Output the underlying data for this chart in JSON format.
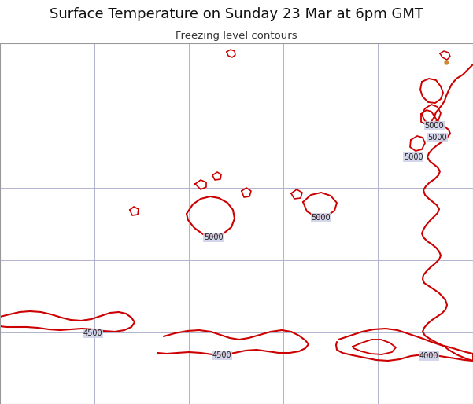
{
  "title": "Surface Temperature on Sunday 23 Mar at 6pm GMT",
  "subtitle": "Freezing level contours",
  "bg_color": "#cdd0e8",
  "map_bg_color": "#cdd0e8",
  "grid_color": "#b0b3cc",
  "contour_color": "#cc0000",
  "title_fontsize": 13,
  "subtitle_fontsize": 9.5,
  "label_fontsize": 7,
  "title_color": "#111111",
  "subtitle_color": "#333333",
  "label_color": "#222222"
}
